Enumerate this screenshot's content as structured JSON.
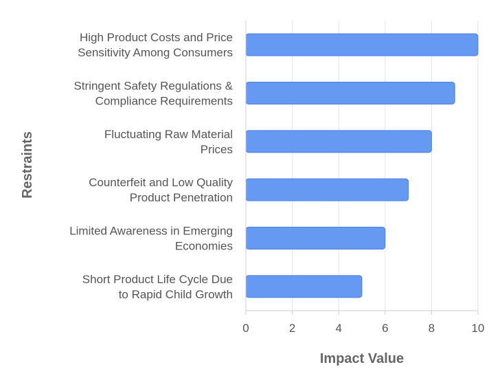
{
  "chart_data": {
    "type": "bar",
    "orientation": "horizontal",
    "categories": [
      [
        "High Product Costs and Price",
        "Sensitivity Among Consumers"
      ],
      [
        "Stringent Safety Regulations &",
        "Compliance Requirements"
      ],
      [
        "Fluctuating Raw Material",
        "Prices"
      ],
      [
        "Counterfeit and Low Quality",
        "Product Penetration"
      ],
      [
        "Limited Awareness in Emerging",
        "Economies"
      ],
      [
        "Short Product Life Cycle Due",
        "to Rapid Child Growth"
      ]
    ],
    "values": [
      10,
      9,
      8,
      7,
      6,
      5
    ],
    "xlabel": "Impact Value",
    "ylabel": "Restraints",
    "xlim": [
      0,
      10
    ],
    "xticks": [
      "0",
      "2",
      "4",
      "6",
      "8",
      "10"
    ],
    "grid": true,
    "colors": {
      "bar_fill": "#6699f2",
      "bar_stroke": "#4a7fe0",
      "grid": "#e3e3e3",
      "axis": "#cccccc"
    }
  }
}
